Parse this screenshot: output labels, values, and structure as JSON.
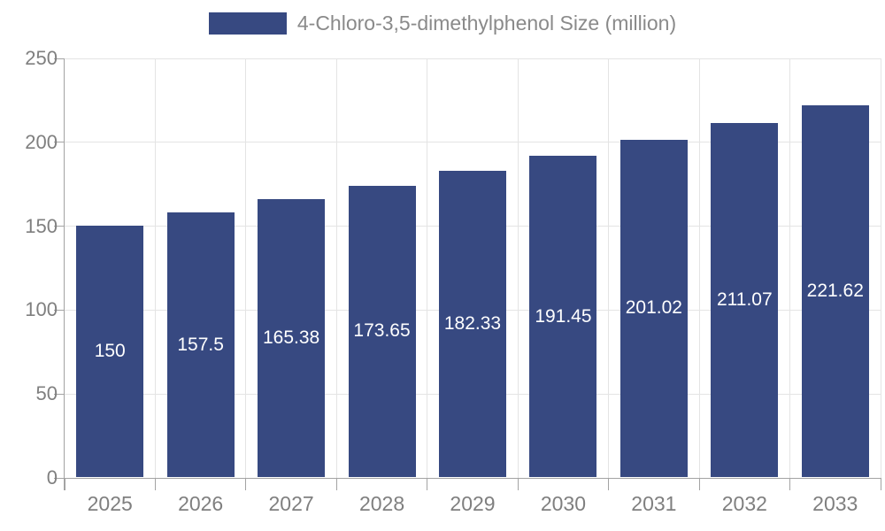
{
  "legend": {
    "label": "4-Chloro-3,5-dimethylphenol Size (million)"
  },
  "colors": {
    "bar": "#374981",
    "bar_label": "#ffffff",
    "axis_text": "#7f7f7f",
    "legend_text": "#8a8a8a",
    "gridline": "#e4e4e4",
    "axis_line": "#a3a3a3"
  },
  "chart_data": {
    "type": "bar",
    "title": "",
    "xlabel": "",
    "ylabel": "",
    "legend_entries": [
      "4-Chloro-3,5-dimethylphenol Size (million)"
    ],
    "legend_position": "top-center",
    "categories": [
      "2025",
      "2026",
      "2027",
      "2028",
      "2029",
      "2030",
      "2031",
      "2032",
      "2033"
    ],
    "values": [
      150,
      157.5,
      165.38,
      173.65,
      182.33,
      191.45,
      201.02,
      211.07,
      221.62
    ],
    "value_labels": [
      "150",
      "157.5",
      "165.38",
      "173.65",
      "182.33",
      "191.45",
      "201.02",
      "211.07",
      "221.62"
    ],
    "ylim": [
      0,
      250
    ],
    "yticks": [
      0,
      50,
      100,
      150,
      200,
      250
    ],
    "grid": true
  }
}
